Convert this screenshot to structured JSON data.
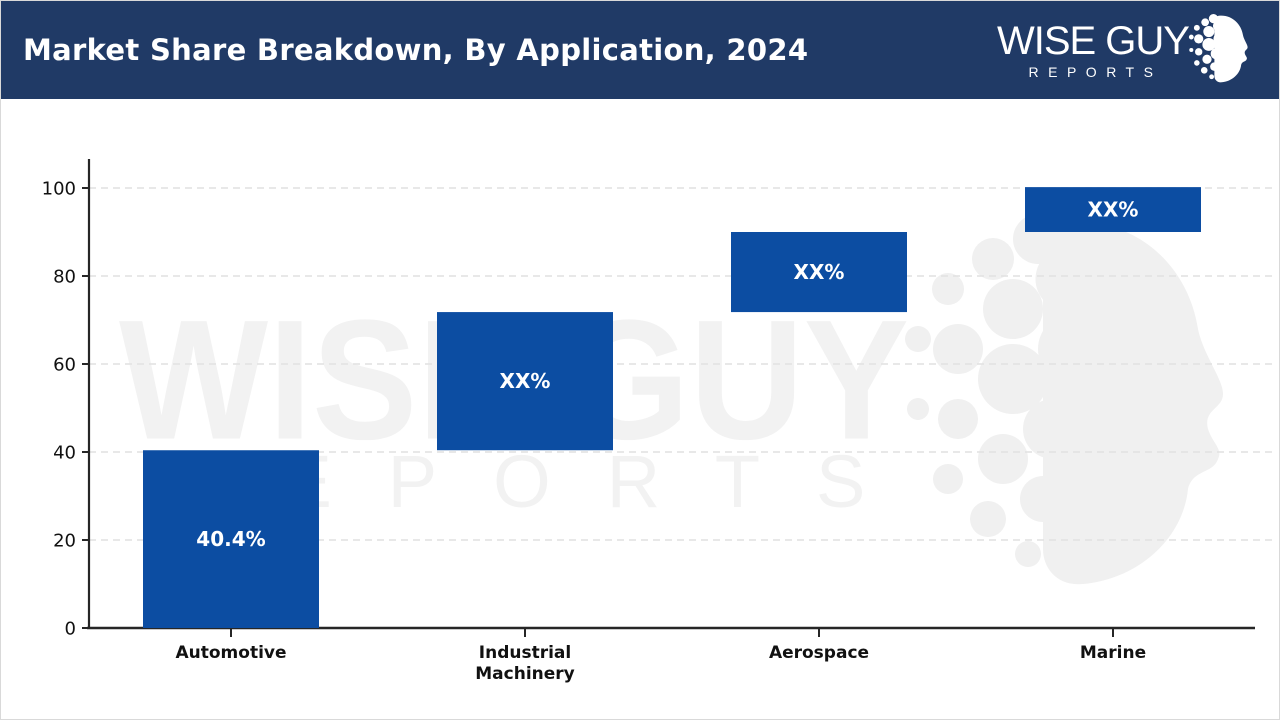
{
  "header": {
    "title": "Market Share Breakdown, By Application, 2024",
    "logo": {
      "line1": "WISE GUY",
      "line2": "REPORTS"
    }
  },
  "watermark": {
    "line1": "WISE GUY",
    "line2": "REPORTS"
  },
  "colors": {
    "header_bg": "#203a66",
    "bar": "#0c4da2",
    "bar_label": "#ffffff",
    "grid": "#e1e1e1",
    "axis": "#262626",
    "tick_text": "#111111",
    "watermark": "#f2f2f2",
    "frame_border": "#d9d9d9"
  },
  "chart_data": {
    "type": "bar",
    "subtype": "waterfall",
    "title": "Market Share Breakdown, By Application, 2024",
    "xlabel": "",
    "ylabel": "",
    "ylim": [
      0,
      106
    ],
    "y_ticks": [
      0,
      20,
      40,
      60,
      80,
      100
    ],
    "grid": "horizontal dashed",
    "legend": "none",
    "categories": [
      "Automotive",
      "Industrial Machinery",
      "Aerospace",
      "Marine"
    ],
    "segments": [
      {
        "key": "automotive",
        "name_lines": [
          "Automotive"
        ],
        "start": 0,
        "end": 40.4,
        "label": "40.4%"
      },
      {
        "key": "industrial-machinery",
        "name_lines": [
          "Industrial",
          "Machinery"
        ],
        "start": 40.4,
        "end": 71.8,
        "label": "XX%"
      },
      {
        "key": "aerospace",
        "name_lines": [
          "Aerospace"
        ],
        "start": 71.8,
        "end": 90.0,
        "label": "XX%"
      },
      {
        "key": "marine",
        "name_lines": [
          "Marine"
        ],
        "start": 90.0,
        "end": 100.2,
        "label": "XX%"
      }
    ]
  }
}
